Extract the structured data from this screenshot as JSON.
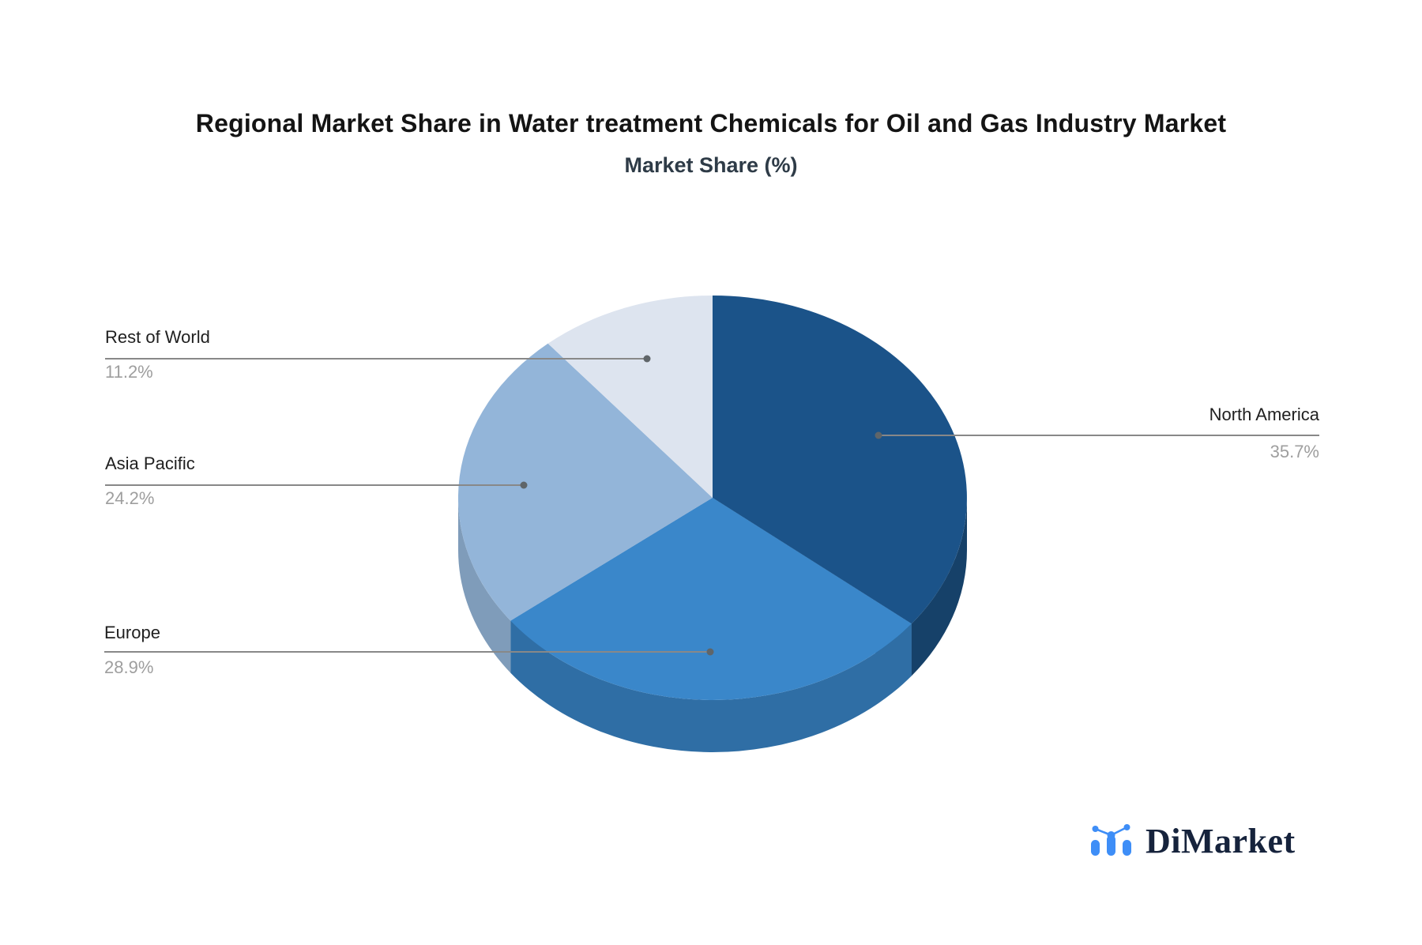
{
  "chart": {
    "title": "Regional Market Share in Water treatment Chemicals for Oil and Gas Industry Market",
    "subtitle": "Market Share (%)"
  },
  "chart_data": {
    "type": "pie",
    "three_d": true,
    "start_angle_deg": 0,
    "direction": "clockwise",
    "unit": "%",
    "title": "Regional Market Share in Water treatment Chemicals for Oil and Gas Industry Market",
    "subtitle": "Market Share (%)",
    "legend_position": "connector-labels",
    "slices": [
      {
        "label": "North America",
        "value": 35.7,
        "display": "35.7%",
        "color": "#1b5389",
        "side_color": "#164169"
      },
      {
        "label": "Europe",
        "value": 28.9,
        "display": "28.9%",
        "color": "#3a87ca",
        "side_color": "#2f6ea5"
      },
      {
        "label": "Asia Pacific",
        "value": 24.2,
        "display": "24.2%",
        "color": "#93b5d9",
        "side_color": "#7f9cba"
      },
      {
        "label": "Rest of World",
        "value": 11.2,
        "display": "11.2%",
        "color": "#dde4ef",
        "side_color": "#c3cedd"
      }
    ],
    "label_color": "#1f1f1f",
    "value_color": "#9e9e9e",
    "leader_line_color": "#888888",
    "leader_dot_color": "#5f6569"
  },
  "branding": {
    "logo_text": "DiMarket",
    "text_color": "#16233c",
    "icon_color": "#3e8ef7",
    "icon": "bar-chart-with-trend-line"
  }
}
